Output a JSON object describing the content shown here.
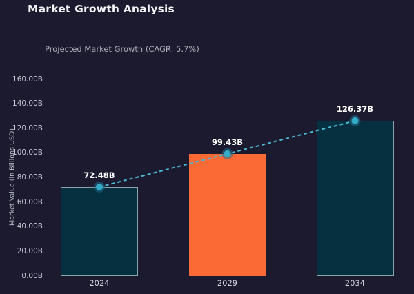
{
  "chart_data": {
    "type": "bar",
    "title": "Market Growth Analysis",
    "subtitle": "Projected Market Growth (CAGR: 5.7%)",
    "ylabel": "Market Value (in Billions USD)",
    "xlabel": "",
    "categories": [
      "2024",
      "2029",
      "2034"
    ],
    "values": [
      72.48,
      99.43,
      126.37
    ],
    "value_labels": [
      "72.48B",
      "99.43B",
      "126.37B"
    ],
    "ylim": [
      0,
      160
    ],
    "ytick_values": [
      0,
      20,
      40,
      60,
      80,
      100,
      120,
      140,
      160
    ],
    "ytick_labels": [
      "0.00B",
      "20.00B",
      "40.00B",
      "60.00B",
      "80.00B",
      "100.00B",
      "120.00B",
      "140.00B",
      "160.00B"
    ],
    "grid": false,
    "legend": "none",
    "overlay": {
      "type": "line",
      "style": "dashed",
      "connects": "bar tops with circular markers"
    },
    "colors": {
      "background": "#1c1a2e",
      "title_text": "#f4f4f7",
      "subtitle_text": "#aeaeba",
      "tick_text": "#c7cbd8",
      "value_label_text": "#ffffff",
      "line": "#49b8d4",
      "marker_fill": "#35aac6",
      "marker_halo": "#1e6e8c"
    },
    "series_colors": [
      {
        "fill": "#05303f",
        "border": "#8aa2ac"
      },
      {
        "fill": "#fb6a35",
        "border": "none"
      },
      {
        "fill": "#05303f",
        "border": "#8aa2ac"
      }
    ]
  }
}
